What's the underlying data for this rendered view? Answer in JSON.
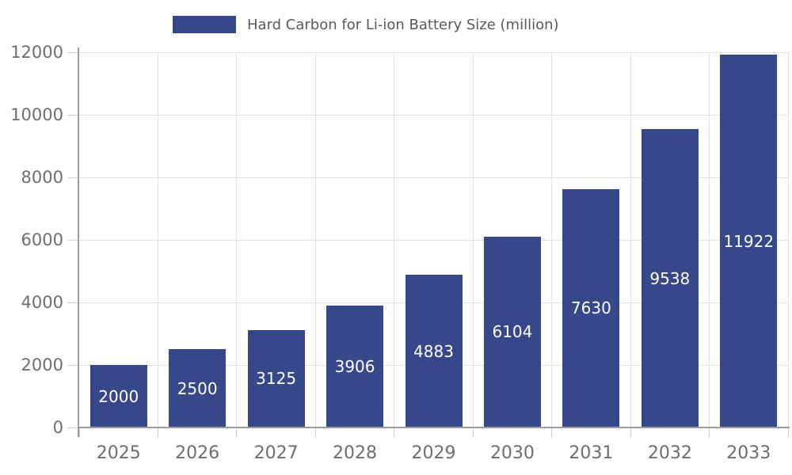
{
  "legend": {
    "label": "Hard Carbon for Li-ion Battery Size (million)",
    "swatch_color": "#36488a"
  },
  "chart_data": {
    "type": "bar",
    "title": "Hard Carbon for Li-ion Battery Size (million)",
    "categories": [
      "2025",
      "2026",
      "2027",
      "2028",
      "2029",
      "2030",
      "2031",
      "2032",
      "2033"
    ],
    "values": [
      2000,
      2500,
      3125,
      3906,
      4883,
      6104,
      7630,
      9538,
      11922
    ],
    "xlabel": "",
    "ylabel": "",
    "ylim": [
      0,
      12000
    ],
    "yticks": [
      0,
      2000,
      4000,
      6000,
      8000,
      10000,
      12000
    ],
    "grid": true,
    "legend_position": "top",
    "bar_color": "#36488a",
    "value_label_color": "#ffffff",
    "axis_color": "#9d9d9d",
    "grid_color": "#e3e3e3",
    "tick_label_color": "#6e6e6e"
  }
}
